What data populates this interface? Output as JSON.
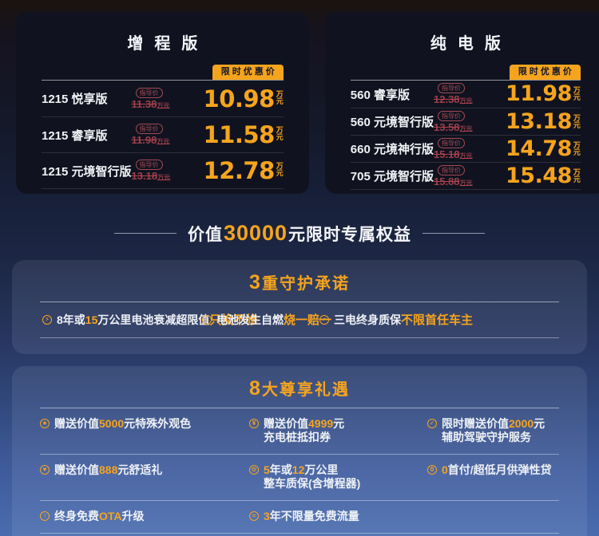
{
  "accent": "#f6a41d",
  "pricing": {
    "offer_badge": "限时优惠价",
    "guide_badge": "指导价",
    "unit": "万元",
    "unit_top": "万",
    "unit_bottom": "元",
    "panels": [
      {
        "title": "增程版",
        "rows": [
          {
            "name": "1215 悦享版",
            "guide": "11.38",
            "price": "10.98"
          },
          {
            "name": "1215 睿享版",
            "guide": "11.98",
            "price": "11.58"
          },
          {
            "name": "1215 元境智行版",
            "guide": "13.18",
            "price": "12.78"
          }
        ]
      },
      {
        "title": "纯电版",
        "rows": [
          {
            "name": "560 睿享版",
            "guide": "12.38",
            "price": "11.98"
          },
          {
            "name": "560 元境智行版",
            "guide": "13.58",
            "price": "13.18"
          },
          {
            "name": "660 元境神行版",
            "guide": "15.18",
            "price": "14.78"
          },
          {
            "name": "705 元境智行版",
            "guide": "15.88",
            "price": "15.48"
          }
        ]
      }
    ]
  },
  "benefits_title": {
    "prefix": "价值",
    "highlight": "30000",
    "suffix": "元限时专属权益"
  },
  "benefit_panels": [
    {
      "id": "promises",
      "title": "3重守护承诺",
      "rows": [
        [
          {
            "icon": "battery-replace-warranty-icon",
            "glyph": "⚡",
            "lines": [
              [
                {
                  "t": "8年或"
                },
                {
                  "t": "15",
                  "hl": true
                },
                {
                  "t": "万公里电池衰减超限值"
                },
                {
                  "t": "只换不修",
                  "em": true
                }
              ]
            ]
          },
          {
            "icon": "battery-fire-compensation-icon",
            "glyph": "♨",
            "lines": [
              [
                {
                  "t": "电池发生自燃"
                },
                {
                  "t": "烧一赔一",
                  "em": true
                }
              ]
            ]
          },
          {
            "icon": "three-electric-lifetime-warranty-icon",
            "glyph": "✓",
            "lines": [
              [
                {
                  "t": "三电终身质保"
                },
                {
                  "t": "不限首任车主",
                  "em": true
                }
              ]
            ]
          }
        ]
      ]
    },
    {
      "id": "privileges",
      "title": "8大尊享礼遇",
      "rows": [
        [
          {
            "icon": "special-paint-color-icon",
            "glyph": "★",
            "lines": [
              [
                {
                  "t": "赠送价值"
                },
                {
                  "t": "5000",
                  "hl": true
                },
                {
                  "t": "元特殊外观色"
                }
              ]
            ]
          },
          {
            "icon": "charging-pile-voucher-icon",
            "glyph": "¥",
            "lines": [
              [
                {
                  "t": "赠送价值"
                },
                {
                  "t": "4999",
                  "hl": true
                },
                {
                  "t": "元"
                }
              ],
              [
                {
                  "t": "充电桩抵扣券"
                }
              ]
            ]
          },
          {
            "icon": "assisted-driving-guard-icon",
            "glyph": "✓",
            "lines": [
              [
                {
                  "t": "限时赠送价值"
                },
                {
                  "t": "2000",
                  "hl": true
                },
                {
                  "t": "元"
                }
              ],
              [
                {
                  "t": "辅助驾驶守护服务"
                }
              ]
            ]
          }
        ],
        [
          {
            "icon": "comfort-gift-icon",
            "glyph": "♥",
            "lines": [
              [
                {
                  "t": "赠送价值"
                },
                {
                  "t": "888",
                  "hl": true
                },
                {
                  "t": "元舒适礼"
                }
              ]
            ]
          },
          {
            "icon": "vehicle-warranty-icon",
            "glyph": "⚙",
            "lines": [
              [
                {
                  "t": "5",
                  "hl": true
                },
                {
                  "t": "年或"
                },
                {
                  "t": "12",
                  "hl": true
                },
                {
                  "t": "万公里"
                }
              ],
              [
                {
                  "t": "整车质保(含增程器)"
                }
              ]
            ]
          },
          {
            "icon": "zero-downpayment-loan-icon",
            "glyph": "0",
            "lines": [
              [
                {
                  "t": "0",
                  "hl": true
                },
                {
                  "t": "首付/超低月供弹性贷"
                }
              ]
            ]
          }
        ],
        [
          {
            "icon": "ota-upgrade-icon",
            "glyph": "↑",
            "lines": [
              [
                {
                  "t": "终身免费"
                },
                {
                  "t": "OTA",
                  "hl": true
                },
                {
                  "t": "升级"
                }
              ]
            ]
          },
          {
            "icon": "free-data-icon",
            "glyph": "≈",
            "lines": [
              [
                {
                  "t": "3",
                  "hl": true
                },
                {
                  "t": "年不限量免费流量"
                }
              ]
            ]
          }
        ]
      ]
    }
  ]
}
